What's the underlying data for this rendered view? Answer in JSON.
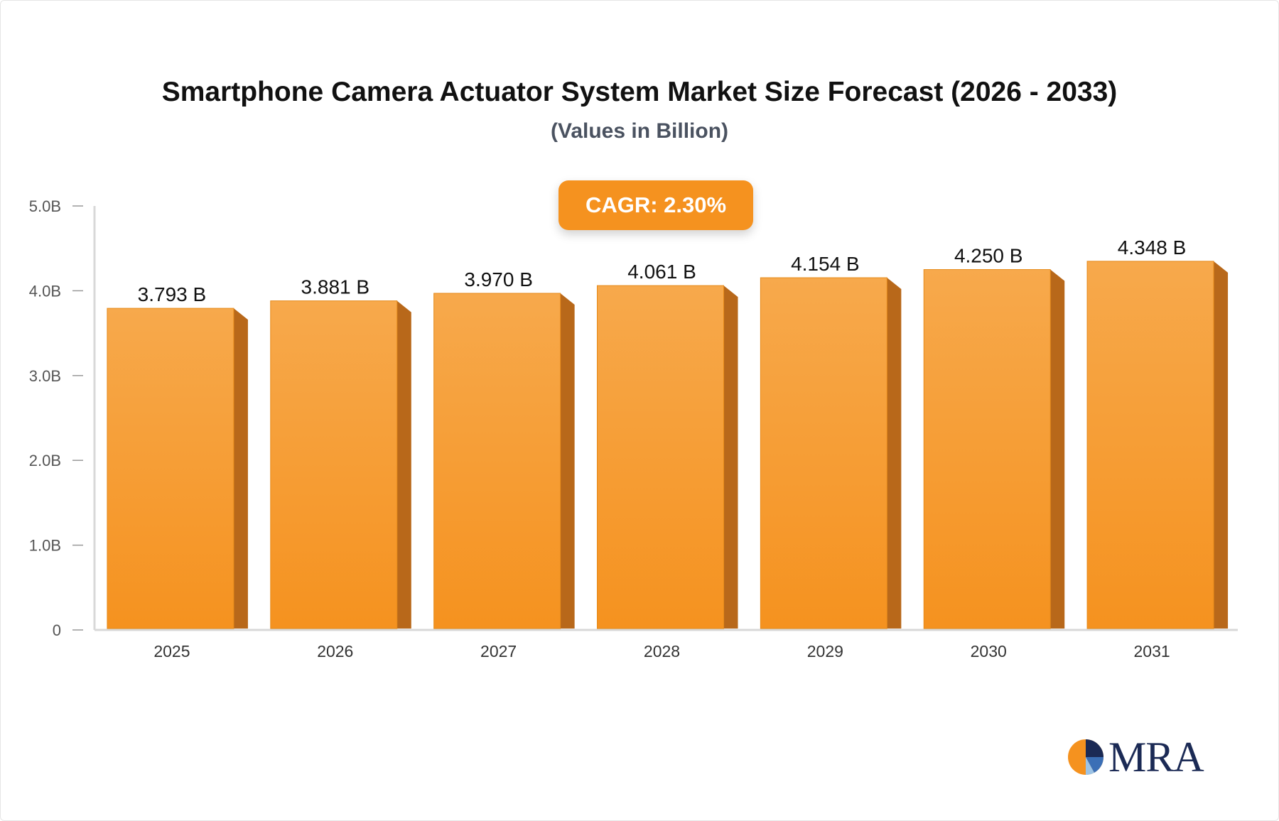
{
  "chart_data": {
    "type": "bar",
    "title": "Smartphone Camera Actuator System Market Size Forecast (2026 - 2033)",
    "subtitle": "(Values in Billion)",
    "categories": [
      "2025",
      "2026",
      "2027",
      "2028",
      "2029",
      "2030",
      "2031"
    ],
    "values": [
      3.793,
      3.881,
      3.97,
      4.061,
      4.154,
      4.25,
      4.348
    ],
    "value_labels": [
      "3.793 B",
      "3.881 B",
      "3.970 B",
      "4.061 B",
      "4.154 B",
      "4.250 B",
      "4.348 B"
    ],
    "y_ticks": [
      0,
      1,
      2,
      3,
      4,
      5
    ],
    "y_tick_labels": [
      "0",
      "1.0B",
      "2.0B",
      "3.0B",
      "4.0B",
      "5.0B"
    ],
    "ylim": [
      0,
      5
    ],
    "grid": false,
    "legend": "none",
    "annotation": "CAGR: 2.30%",
    "colors": {
      "bar_top": "#f7a94c",
      "bar_bottom": "#f5921f",
      "bar_side": "#b8681a",
      "badge": "#f5921f",
      "axis": "#d8d8d8",
      "tick_label": "#333333"
    }
  },
  "logo": {
    "text": "MRA",
    "colors": {
      "orange": "#f5921f",
      "navy": "#1b2a55",
      "blue": "#3b6fb6",
      "light": "#9cc3e6"
    }
  }
}
